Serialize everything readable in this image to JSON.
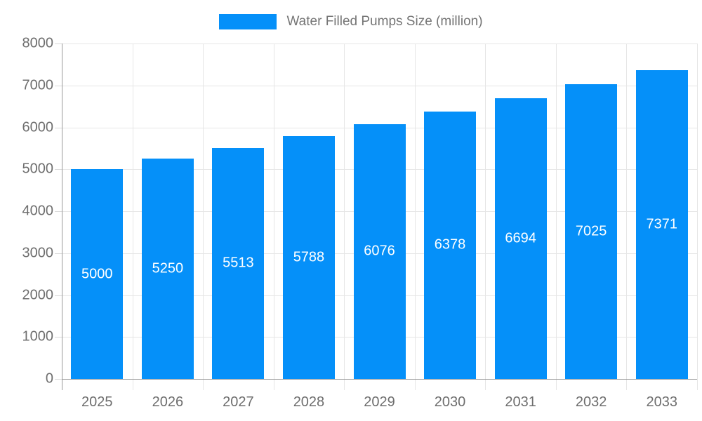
{
  "legend": {
    "label": "Water Filled Pumps Size (million)"
  },
  "colors": {
    "bar": "#0590f9",
    "grid": "#e6e6e6",
    "axis": "#999999",
    "tick": "#d9d9d9",
    "text": "#6e6e6e",
    "legend_text": "#757575",
    "bar_label": "#ffffff"
  },
  "chart_data": {
    "type": "bar",
    "title": "Water Filled Pumps Size (million)",
    "categories": [
      "2025",
      "2026",
      "2027",
      "2028",
      "2029",
      "2030",
      "2031",
      "2032",
      "2033"
    ],
    "values": [
      5000,
      5250,
      5513,
      5788,
      6076,
      6378,
      6694,
      7025,
      7371
    ],
    "series": [
      {
        "name": "Water Filled Pumps Size (million)",
        "values": [
          5000,
          5250,
          5513,
          5788,
          6076,
          6378,
          6694,
          7025,
          7371
        ]
      }
    ],
    "xlabel": "",
    "ylabel": "",
    "ylim": [
      0,
      8000
    ],
    "yticks": [
      0,
      1000,
      2000,
      3000,
      4000,
      5000,
      6000,
      7000,
      8000
    ],
    "grid": true,
    "legend_position": "top",
    "bar_labels_inside": true
  }
}
